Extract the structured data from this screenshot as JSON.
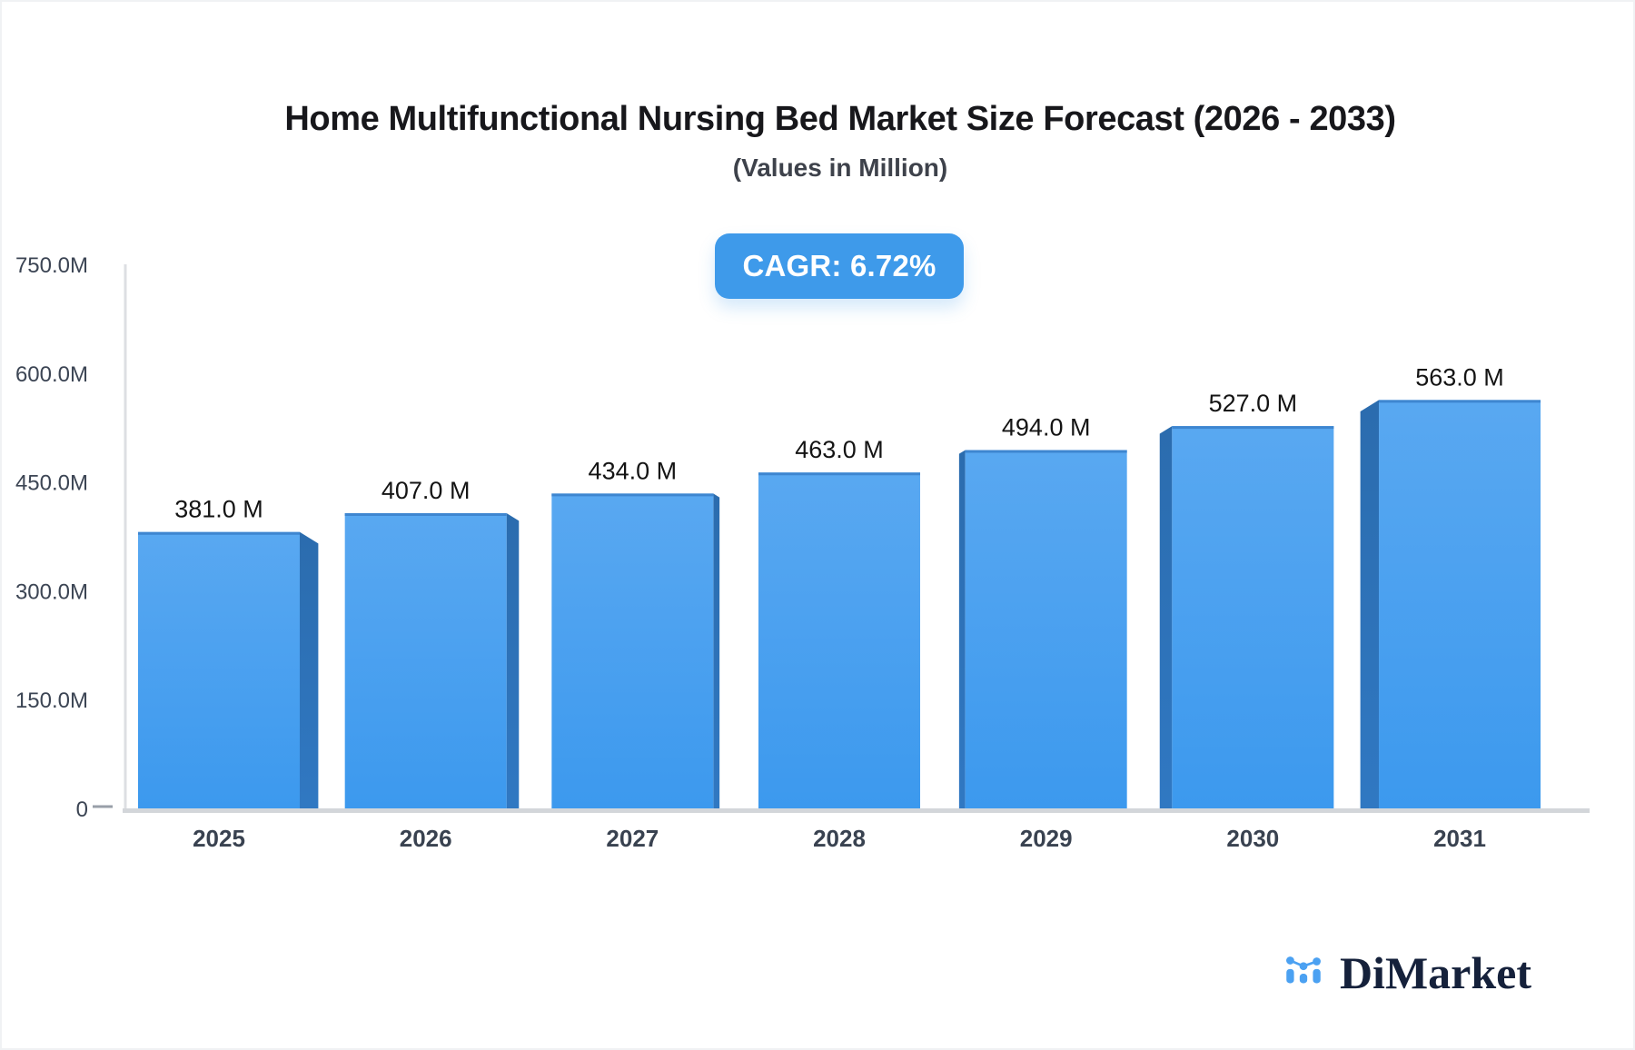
{
  "header": {
    "title": "Home Multifunctional Nursing Bed Market Size Forecast (2026 - 2033)",
    "subtitle": "(Values in Million)",
    "cagr_label": "CAGR: 6.72%",
    "accent_color": "#3e9aea"
  },
  "chart_data": {
    "type": "bar",
    "title": "Home Multifunctional Nursing Bed Market Size Forecast (2026 - 2033)",
    "subtitle": "(Values in Million)",
    "cagr_percent": 6.72,
    "categories": [
      "2025",
      "2026",
      "2027",
      "2028",
      "2029",
      "2030",
      "2031"
    ],
    "values": [
      381,
      407,
      434,
      463,
      494,
      527,
      563
    ],
    "data_labels": [
      "381.0 M",
      "407.0 M",
      "434.0 M",
      "463.0 M",
      "494.0 M",
      "527.0 M",
      "563.0 M"
    ],
    "unit": "M",
    "ylim": [
      0,
      750
    ],
    "y_ticks": [
      {
        "value": 750,
        "label": "750.0M"
      },
      {
        "value": 600,
        "label": "600.0M"
      },
      {
        "value": 450,
        "label": "450.0M"
      },
      {
        "value": 300,
        "label": "300.0M"
      },
      {
        "value": 150,
        "label": "150.0M"
      },
      {
        "value": 0,
        "label": "0"
      }
    ],
    "grid": false,
    "legend": false,
    "bar_style": "3d-perspective",
    "colors": {
      "bar_face_top": "#59a8f1",
      "bar_face_bottom": "#3c99ee",
      "bar_side_top": "#2b6cae",
      "bar_side_bottom": "#3078c2",
      "bar_top_edge": "#3e86d0",
      "axis_line": "#dddfe3",
      "baseline": "#d3d6da",
      "zero_dash": "#989fa8"
    }
  },
  "footer": {
    "brand": "DiMarket"
  }
}
